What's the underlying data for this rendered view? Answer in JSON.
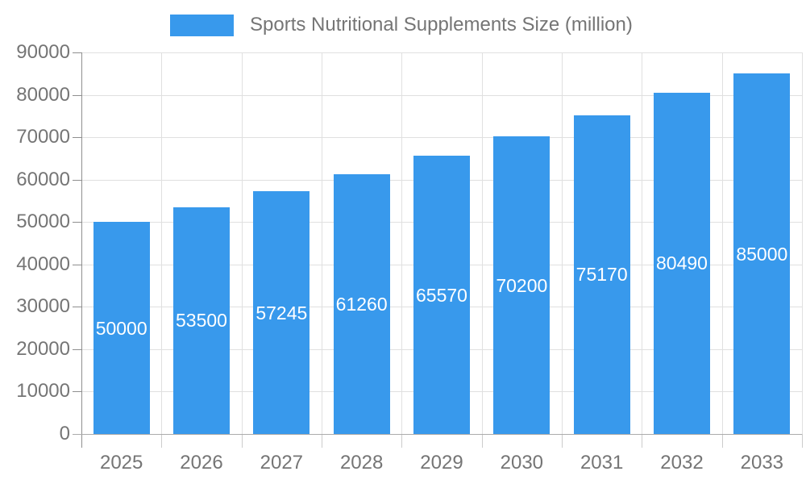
{
  "chart_data": {
    "type": "bar",
    "title": "Sports Nutritional Supplements Size (million)",
    "legend": [
      "Sports Nutritional Supplements Size (million)"
    ],
    "legend_position": "top",
    "categories": [
      "2025",
      "2026",
      "2027",
      "2028",
      "2029",
      "2030",
      "2031",
      "2032",
      "2033"
    ],
    "series": [
      {
        "name": "Sports Nutritional Supplements Size (million)",
        "values": [
          50000,
          53500,
          57245,
          61260,
          65570,
          70200,
          75170,
          80490,
          85000
        ]
      }
    ],
    "value_labels": [
      "50000",
      "53500",
      "57245",
      "61260",
      "65570",
      "70200",
      "75170",
      "80490",
      "85000"
    ],
    "value_label_position": "inside-center",
    "xlabel": "",
    "ylabel": "",
    "ylim": [
      0,
      90000
    ],
    "yticks": [
      0,
      10000,
      20000,
      30000,
      40000,
      50000,
      60000,
      70000,
      80000,
      90000
    ],
    "grid": true
  },
  "colors": {
    "bar": "#3899EC",
    "axis_text": "#757575",
    "value_label_text": "#FFFFFF",
    "grid_line": "#E0E0E0",
    "axis_line": "#8F8F8F",
    "baseline": "#ABABAB",
    "background": "#FFFFFF"
  }
}
